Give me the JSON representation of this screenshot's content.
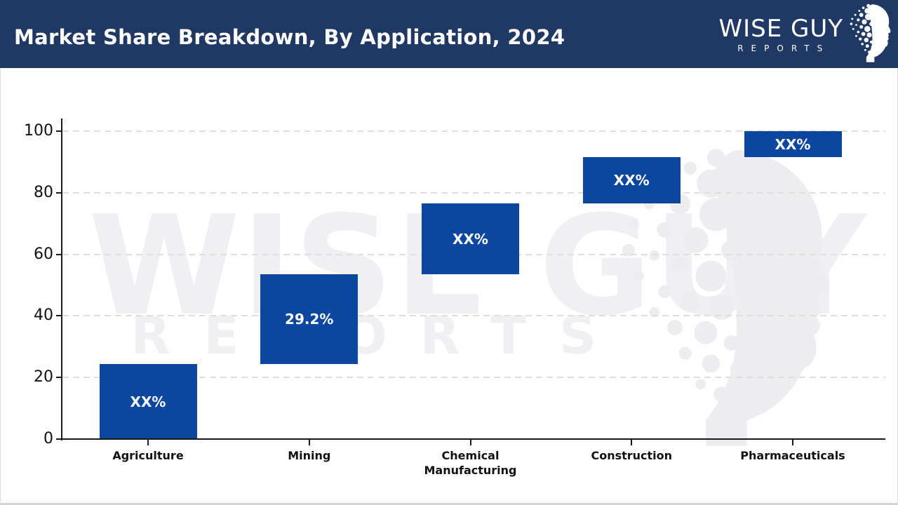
{
  "header": {
    "title": "Market Share Breakdown, By Application, 2024",
    "brand_name": "WISE GUY",
    "brand_sub": "REPORTS",
    "bg_color": "#1f3864"
  },
  "watermark": {
    "line1": "WISE GUY",
    "line2": "REPORTS"
  },
  "chart_data": {
    "type": "bar",
    "subtype": "waterfall",
    "title": "Market Share Breakdown, By Application, 2024",
    "unit": "%",
    "categories": [
      "Agriculture",
      "Mining",
      "Chemical\nManufacturing",
      "Construction",
      "Pharmaceuticals"
    ],
    "series": [
      {
        "name": "Market share",
        "starts": [
          0,
          24.3,
          53.5,
          76.5,
          91.5
        ],
        "values": [
          24.3,
          29.2,
          23.0,
          15.0,
          8.5
        ]
      }
    ],
    "bar_labels": [
      "XX%",
      "29.2%",
      "XX%",
      "XX%",
      "XX%"
    ],
    "yticks": [
      0,
      20,
      40,
      60,
      80,
      100
    ],
    "ylim": [
      0,
      104
    ],
    "xlabel": "",
    "ylabel": "",
    "legend": "none",
    "grid": "horizontal-dashed",
    "bar_color": "#0b479f",
    "label_color": "#ffffff",
    "axis_color": "#1a1a1a",
    "grid_color": "#dedede"
  }
}
